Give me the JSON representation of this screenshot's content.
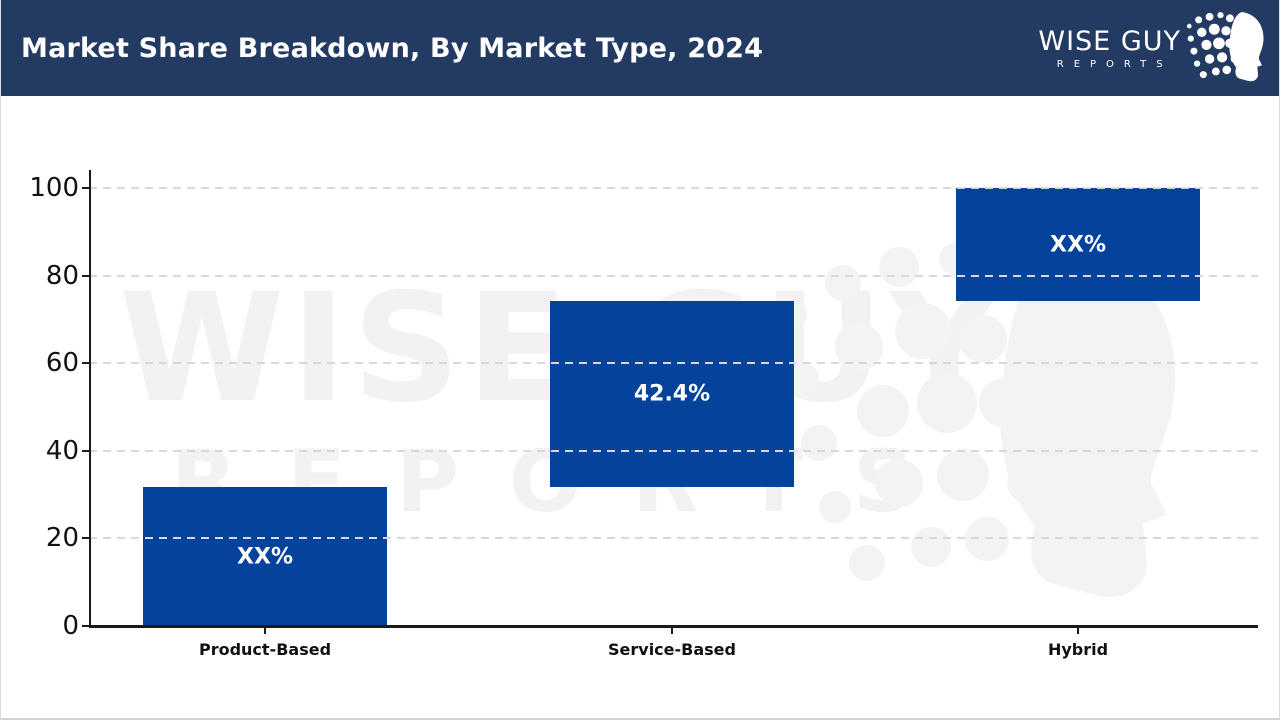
{
  "header": {
    "title": "Market Share Breakdown, By Market Type, 2024",
    "logo": {
      "brand": "WISE GUY",
      "sub": "REPORTS"
    }
  },
  "watermark": {
    "brand": "WISE GUY",
    "sub": "REPORTS"
  },
  "colors": {
    "header_bg": "#233a63",
    "bar": "#05429b",
    "grid": "#d8d8d8",
    "axis": "#1a1a1a",
    "bar_label": "#ffffff",
    "watermark": "#f2f2f2"
  },
  "chart_data": {
    "type": "bar",
    "subtype": "waterfall",
    "title": "Market Share Breakdown, By Market Type, 2024",
    "xlabel": "",
    "ylabel": "",
    "categories": [
      "Product-Based",
      "Service-Based",
      "Hybrid"
    ],
    "bars": [
      {
        "category": "Product-Based",
        "base": 0,
        "top": 31.7,
        "label": "XX%"
      },
      {
        "category": "Service-Based",
        "base": 31.7,
        "top": 74.1,
        "label": "42.4%"
      },
      {
        "category": "Hybrid",
        "base": 74.1,
        "top": 100,
        "label": "XX%"
      }
    ],
    "yticks": [
      0,
      20,
      40,
      60,
      80,
      100
    ],
    "ylim": [
      0,
      104
    ],
    "grid": "dashed-horizontal-over-bars",
    "legend": "none"
  }
}
